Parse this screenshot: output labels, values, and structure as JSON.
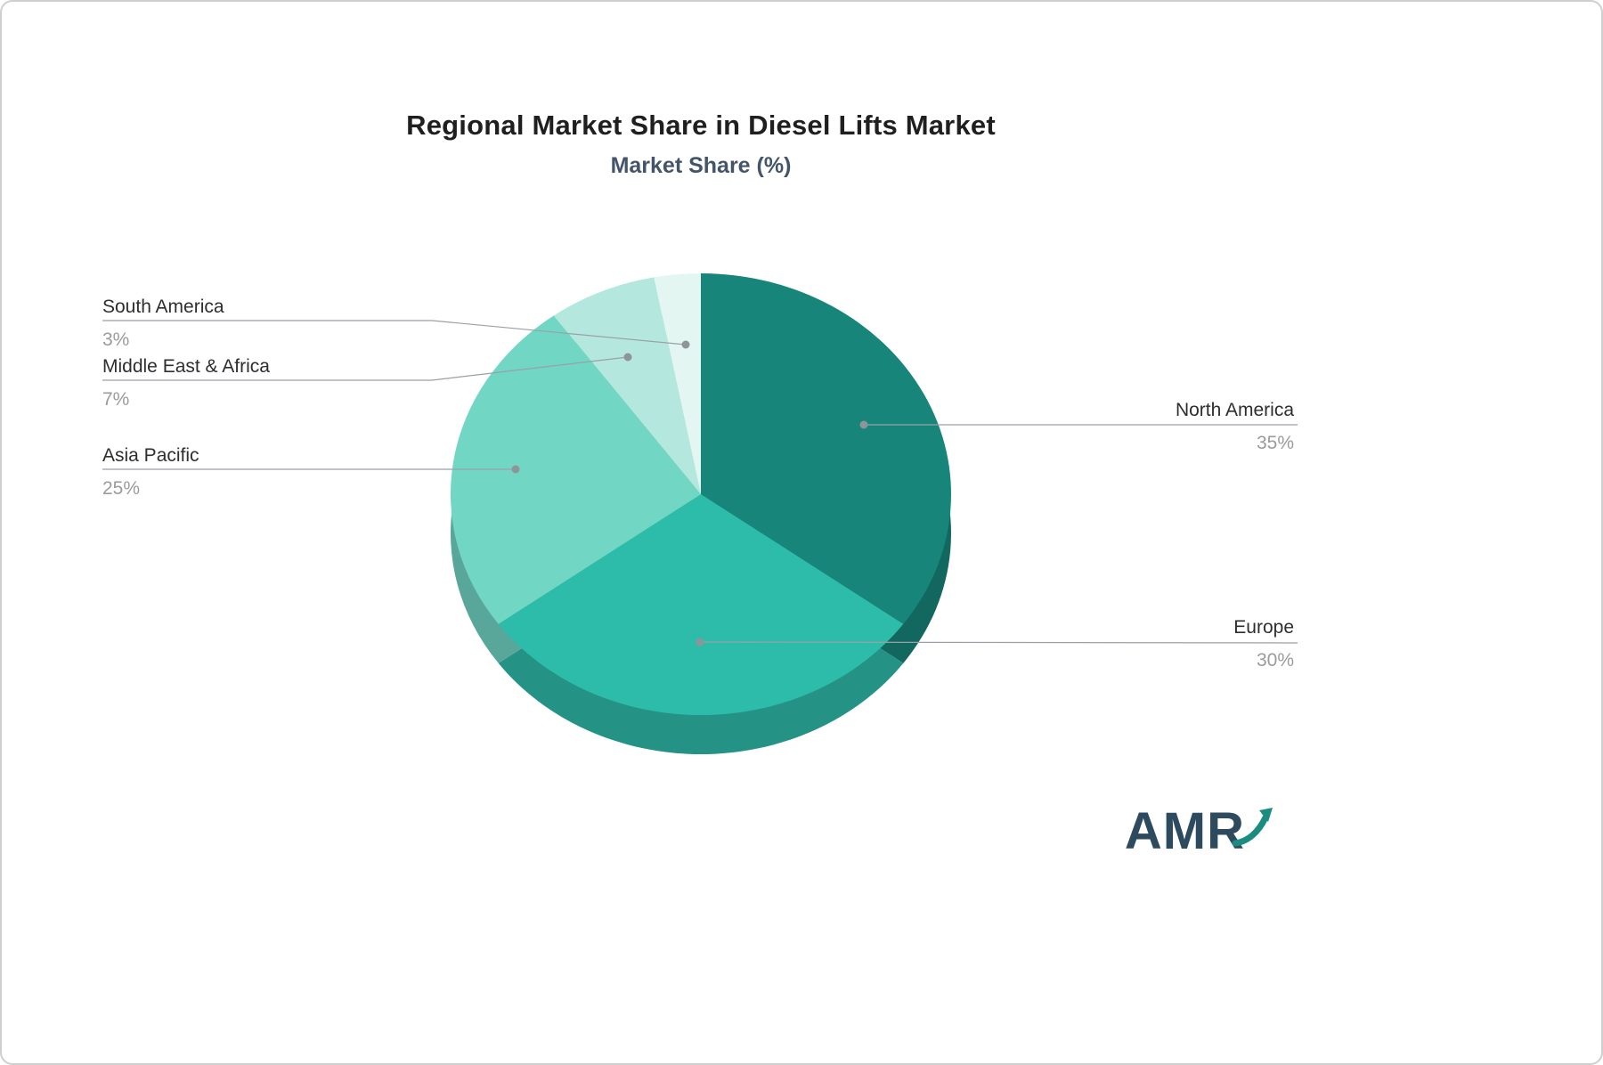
{
  "chart_data": {
    "type": "pie",
    "title": "Regional Market Share in Diesel Lifts Market",
    "subtitle": "Market Share (%)",
    "unit": "%",
    "direction": "clockwise",
    "start_angle_deg": 0,
    "effect": "3d",
    "legend": "none",
    "slices": [
      {
        "name": "North America",
        "value": 35,
        "label": "35%",
        "color": "#17857a"
      },
      {
        "name": "Europe",
        "value": 30,
        "label": "30%",
        "color": "#2ebcaa"
      },
      {
        "name": "Asia Pacific",
        "value": 25,
        "label": "25%",
        "color": "#72d6c5"
      },
      {
        "name": "Middle East & Africa",
        "value": 7,
        "label": "7%",
        "color": "#b4e8df"
      },
      {
        "name": "South America",
        "value": 3,
        "label": "3%",
        "color": "#e3f6f2"
      }
    ],
    "label_color": "#2e2e2e",
    "value_color": "#9b9b9b",
    "line_color": "#9aa0a6"
  },
  "logo": {
    "text": "AMR"
  }
}
